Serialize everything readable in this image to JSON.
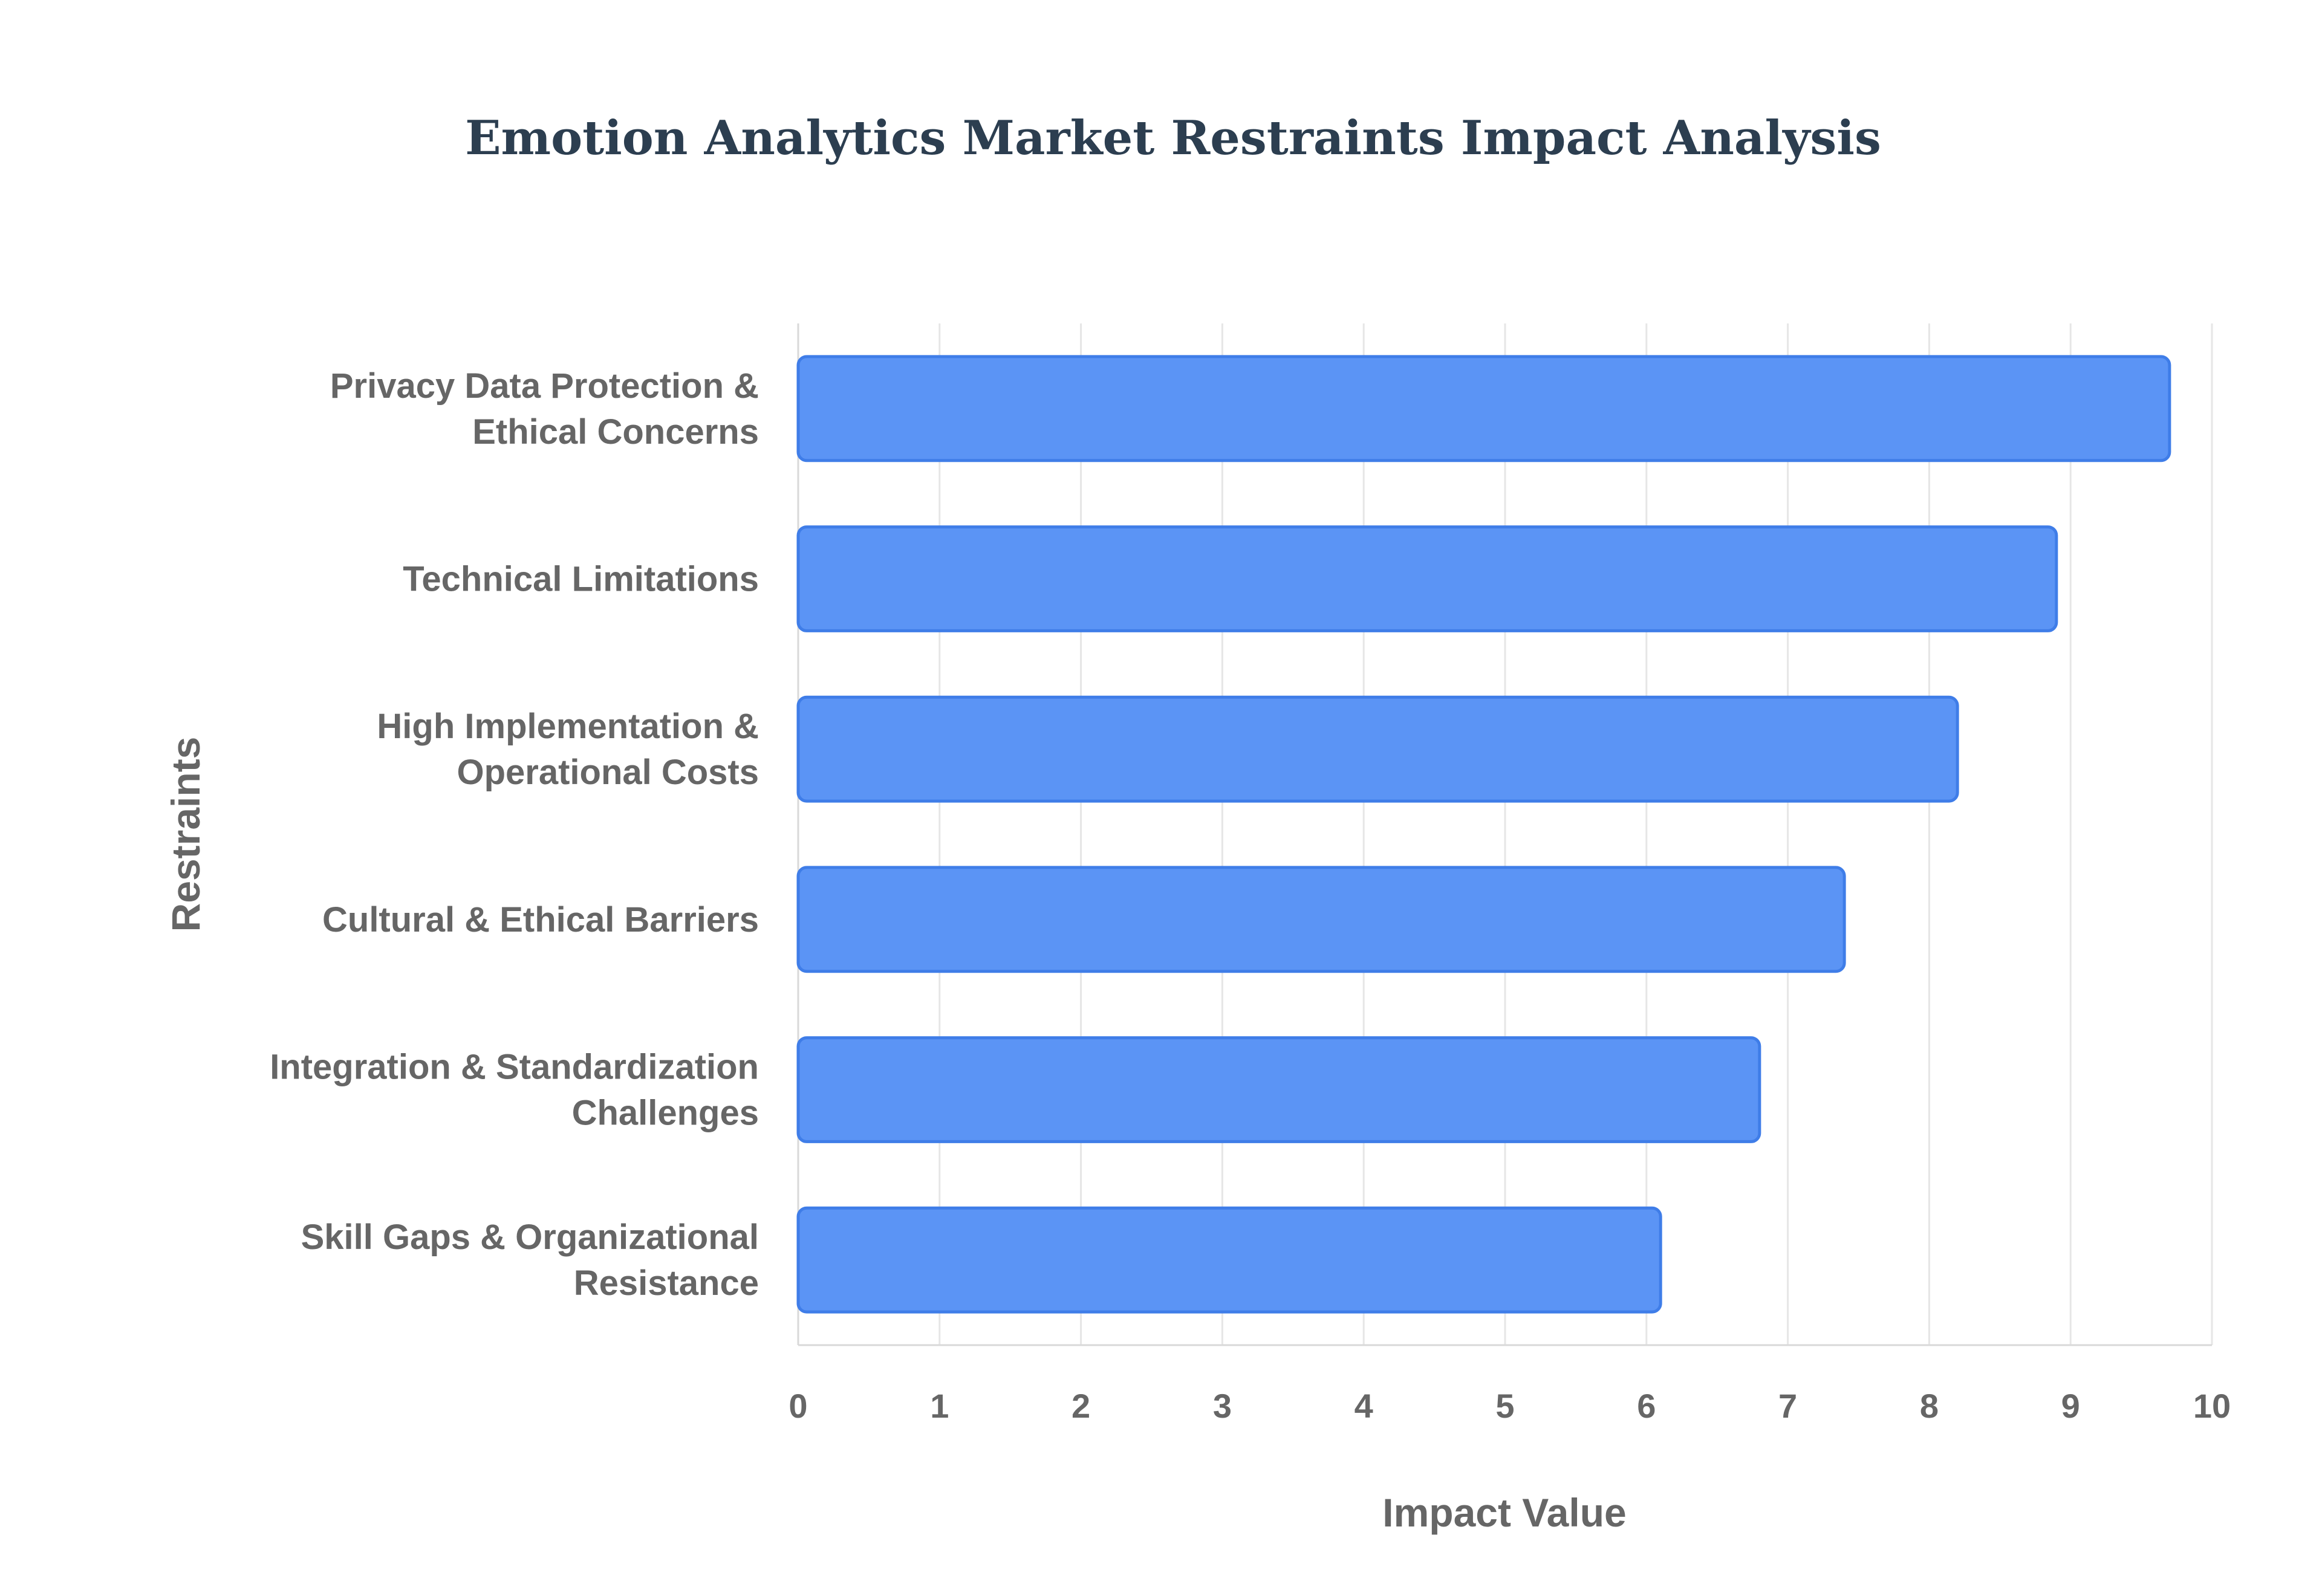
{
  "chart_data": {
    "type": "bar",
    "orientation": "horizontal",
    "title": "Emotion Analytics Market Restraints Impact Analysis",
    "xlabel": "Impact Value",
    "ylabel": "Restraints",
    "xlim": [
      0,
      10
    ],
    "xticks": [
      0,
      1,
      2,
      3,
      4,
      5,
      6,
      7,
      8,
      9,
      10
    ],
    "grid": true,
    "legend": "none",
    "categories": [
      [
        "Privacy Data Protection &",
        "Ethical Concerns"
      ],
      [
        "Technical Limitations"
      ],
      [
        "High Implementation &",
        "Operational Costs"
      ],
      [
        "Cultural & Ethical Barriers"
      ],
      [
        "Integration & Standardization",
        "Challenges"
      ],
      [
        "Skill Gaps & Organizational",
        "Resistance"
      ]
    ],
    "values": [
      9.7,
      8.9,
      8.2,
      7.4,
      6.8,
      6.1
    ],
    "colors": {
      "bar_fill": "#5b94f5",
      "bar_stroke": "#3f7de8",
      "grid": "#e6e6e6",
      "title": "#2c3e50",
      "text": "#666666"
    }
  }
}
